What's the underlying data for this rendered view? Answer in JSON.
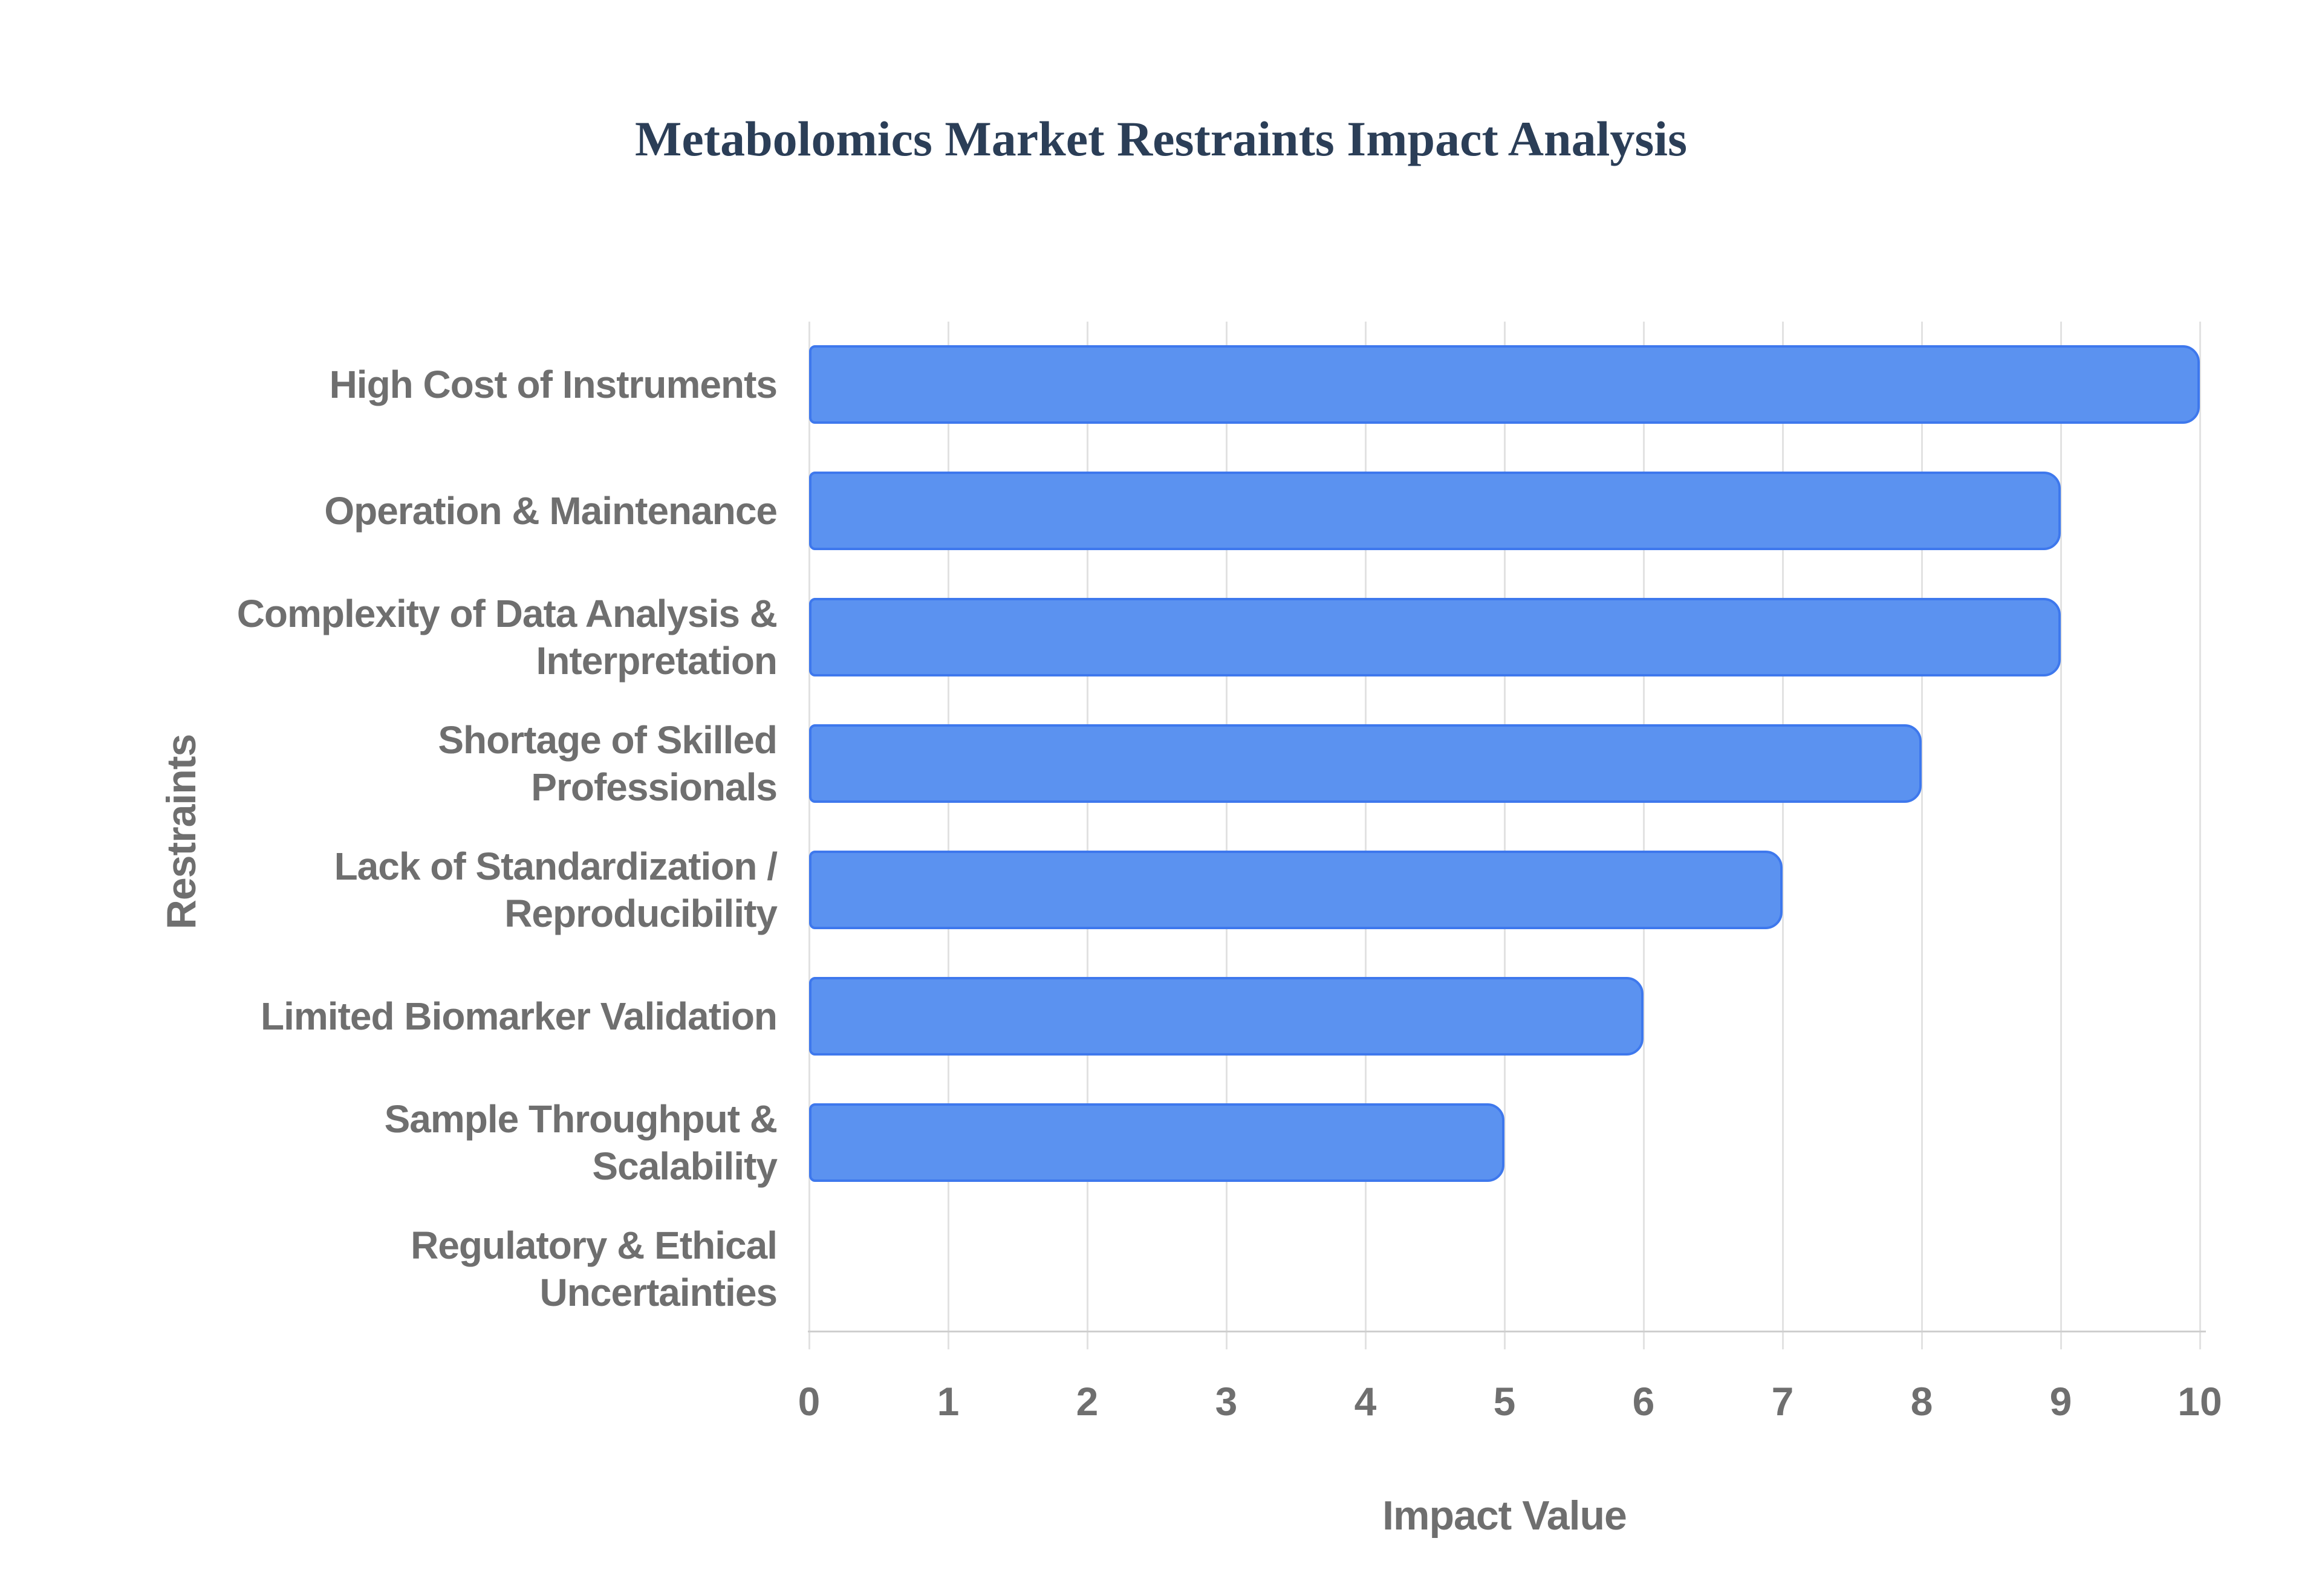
{
  "title": "Metabolomics Market Restraints Impact Analysis",
  "chart_data": {
    "type": "bar",
    "orientation": "horizontal",
    "title": "Metabolomics Market Restraints Impact Analysis",
    "xlabel": "Impact Value",
    "ylabel": "Restraints",
    "categories": [
      "High Cost of Instruments",
      "Operation & Maintenance",
      "Complexity of Data Analysis & Interpretation",
      "Shortage of Skilled Professionals",
      "Lack of Standardization / Reproducibility",
      "Limited Biomarker Validation",
      "Sample Throughput & Scalability",
      "Regulatory & Ethical Uncertainties"
    ],
    "category_lines": [
      [
        "High Cost of Instruments"
      ],
      [
        "Operation & Maintenance"
      ],
      [
        "Complexity of Data Analysis &",
        "Interpretation"
      ],
      [
        "Shortage of Skilled",
        "Professionals"
      ],
      [
        "Lack of Standardization /",
        "Reproducibility"
      ],
      [
        "Limited Biomarker Validation"
      ],
      [
        "Sample Throughput &",
        "Scalability"
      ],
      [
        "Regulatory & Ethical",
        "Uncertainties"
      ]
    ],
    "values": [
      10,
      9,
      9,
      8,
      7,
      6,
      5,
      0
    ],
    "xlim": [
      0,
      10
    ],
    "xticks": [
      0,
      1,
      2,
      3,
      4,
      5,
      6,
      7,
      8,
      9,
      10
    ],
    "grid": "vertical",
    "legend": "none",
    "colors": {
      "bar_fill": "#5b92f0",
      "bar_border": "#3e78ed",
      "gridline": "#e2e2e2",
      "axis_line": "#cfcfcf",
      "title": "#2b3e57",
      "text": "#6f6f6f",
      "background": "#ffffff"
    }
  }
}
